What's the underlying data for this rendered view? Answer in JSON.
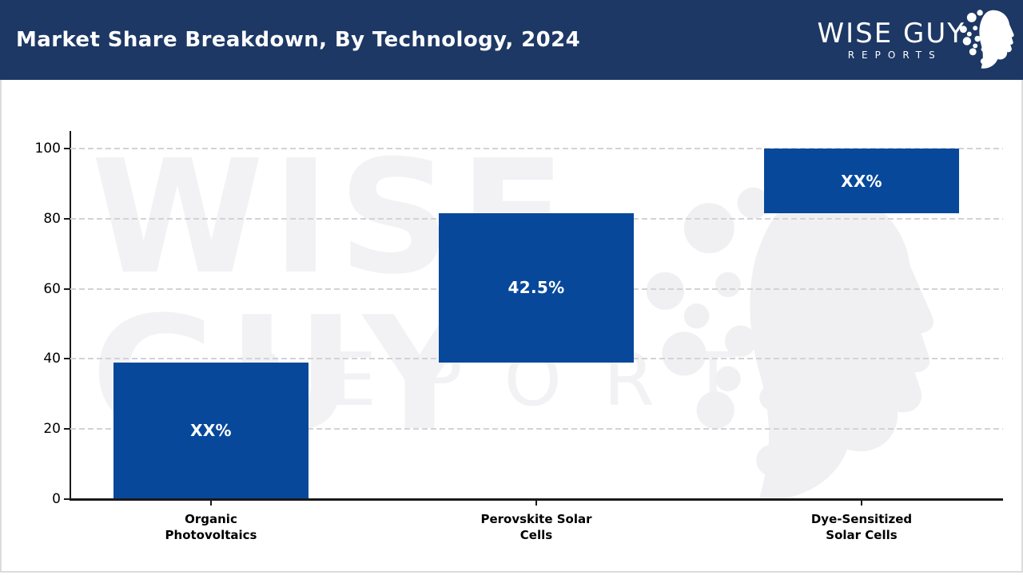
{
  "header": {
    "title": "Market Share Breakdown, By Technology, 2024",
    "logo": {
      "line1": "WISE GUY",
      "line2": "REPORTS"
    }
  },
  "watermark": {
    "line1": "WISE GUY",
    "line2": "REPORTS"
  },
  "chart_data": {
    "type": "bar",
    "subtype": "waterfall-floating-bars",
    "title": "Market Share Breakdown, By Technology, 2024",
    "categories": [
      "Organic Photovoltaics",
      "Perovskite Solar Cells",
      "Dye-Sensitized Solar Cells"
    ],
    "categories_lines": [
      [
        "Organic",
        "Photovoltaics"
      ],
      [
        "Perovskite Solar",
        "Cells"
      ],
      [
        "Dye-Sensitized",
        "Solar Cells"
      ]
    ],
    "bars": [
      {
        "category": "Organic Photovoltaics",
        "start": 0,
        "end": 39,
        "value_label": "XX%"
      },
      {
        "category": "Perovskite Solar Cells",
        "start": 39,
        "end": 81.5,
        "value_label": "42.5%"
      },
      {
        "category": "Dye-Sensitized Solar Cells",
        "start": 81.5,
        "end": 100,
        "value_label": "XX%"
      }
    ],
    "ylim": [
      0,
      100
    ],
    "yticks": [
      0,
      20,
      40,
      60,
      80,
      100
    ],
    "grid": "horizontal-dashed",
    "legend": "none",
    "bar_color": "#07489b",
    "label_color": "#ffffff"
  },
  "colors": {
    "header_bg": "#1d3865",
    "bar": "#07489b",
    "grid": "#d3d3d3",
    "axis": "#1a1a1a",
    "watermark": "#f2f2f5",
    "content_border": "#dcdcdc"
  }
}
